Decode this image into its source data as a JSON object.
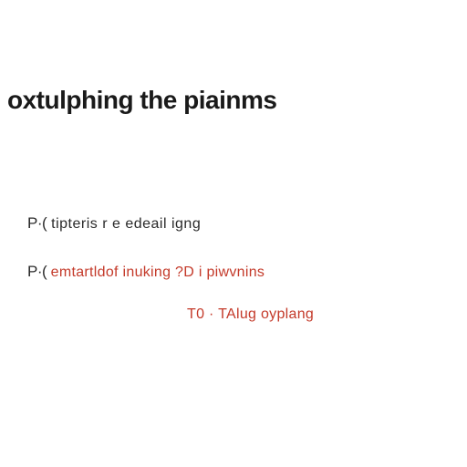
{
  "title": "oxtulphing the piainms",
  "line1": {
    "prefix": "P·(",
    "body": "tipteris r e edeail   igng"
  },
  "line2": {
    "prefix": "P·(",
    "body": "emtartldof inuking ?D i piwvnins"
  },
  "line3": "T0 · TAlug  oyplang",
  "colors": {
    "text": "#2a2a2a",
    "accent": "#c43a2a",
    "background": "#ffffff"
  },
  "fonts": {
    "title_size": 28,
    "body_size": 16,
    "title_weight": 700
  }
}
